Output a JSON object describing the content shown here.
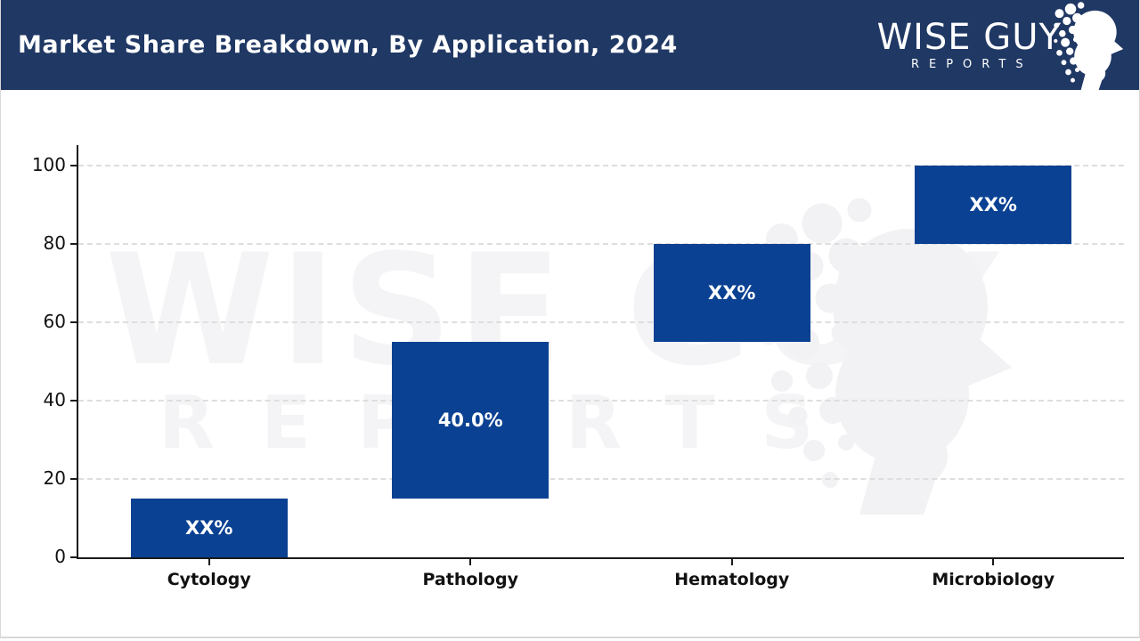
{
  "header": {
    "title": "Market Share Breakdown, By Application, 2024",
    "background": "#203864",
    "logo": {
      "line1": "WISE GUY",
      "line2": "REPORTS"
    }
  },
  "watermark": {
    "line1": "WISE GUY",
    "line2": "REPORTS"
  },
  "chart_data": {
    "type": "bar",
    "subtype": "waterfall",
    "title": "Market Share Breakdown, By Application, 2024",
    "categories": [
      "Cytology",
      "Pathology",
      "Hematology",
      "Microbiology"
    ],
    "series": [
      {
        "name": "Market Share",
        "segments": [
          {
            "category": "Cytology",
            "start": 0,
            "end": 15,
            "label": "XX%"
          },
          {
            "category": "Pathology",
            "start": 15,
            "end": 55,
            "label": "40.0%"
          },
          {
            "category": "Hematology",
            "start": 55,
            "end": 80,
            "label": "XX%"
          },
          {
            "category": "Microbiology",
            "start": 80,
            "end": 100,
            "label": "XX%"
          }
        ]
      }
    ],
    "xlabel": "",
    "ylabel": "",
    "ylim": [
      0,
      100
    ],
    "yticks": [
      0,
      20,
      40,
      60,
      80,
      100
    ],
    "grid": "horizontal-dashed",
    "legend": "none",
    "bar_color": "#0b4192",
    "bar_label_color": "#ffffff",
    "axis_color": "#1a1a1a",
    "gridline_color": "#dedede"
  }
}
